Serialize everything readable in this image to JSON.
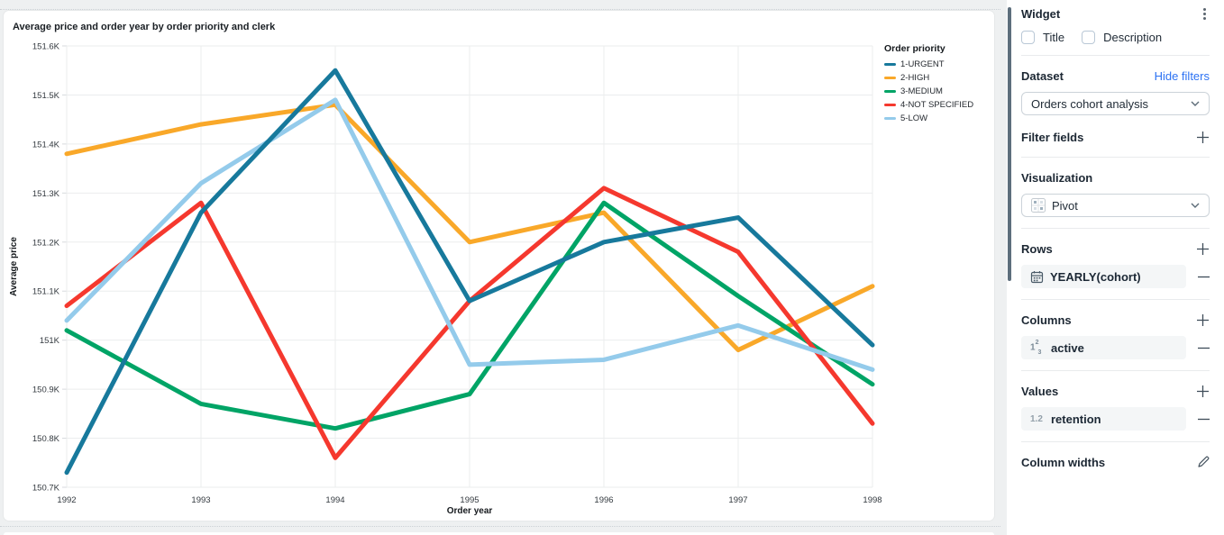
{
  "chart_data": {
    "type": "line",
    "title": "Average price and order year by order priority and clerk",
    "xlabel": "Order year",
    "ylabel": "Average price",
    "categories": [
      "1992",
      "1993",
      "1994",
      "1995",
      "1996",
      "1997",
      "1998"
    ],
    "unit": "K",
    "ylim": [
      150.7,
      151.6
    ],
    "ytick_step": 0.1,
    "ytick_labels": [
      "151.6K",
      "151.5K",
      "151.4K",
      "151.3K",
      "151.2K",
      "151.1K",
      "151K",
      "150.9K",
      "150.8K",
      "150.7K"
    ],
    "grid": true,
    "legend": {
      "title": "Order priority",
      "position": "right"
    },
    "series": [
      {
        "name": "1-URGENT",
        "color": "#17799c",
        "values": [
          150.73,
          151.26,
          151.55,
          151.08,
          151.2,
          151.25,
          150.99
        ]
      },
      {
        "name": "2-HIGH",
        "color": "#f9a829",
        "values": [
          151.38,
          151.44,
          151.48,
          151.2,
          151.26,
          150.98,
          151.11
        ]
      },
      {
        "name": "3-MEDIUM",
        "color": "#00a466",
        "values": [
          151.02,
          150.87,
          150.82,
          150.89,
          151.28,
          151.09,
          150.91
        ]
      },
      {
        "name": "4-NOT SPECIFIED",
        "color": "#f5382e",
        "values": [
          151.07,
          151.28,
          150.76,
          151.08,
          151.31,
          151.18,
          150.83
        ]
      },
      {
        "name": "5-LOW",
        "color": "#94cbeb",
        "values": [
          151.04,
          151.32,
          151.49,
          150.95,
          150.96,
          151.03,
          150.94
        ]
      }
    ],
    "draw_order": [
      1,
      2,
      3,
      4,
      0
    ]
  },
  "sidebar": {
    "title": "Widget",
    "checkboxes": [
      {
        "label": "Title",
        "checked": false
      },
      {
        "label": "Description",
        "checked": false
      }
    ],
    "dataset": {
      "label": "Dataset",
      "link": "Hide filters",
      "selected": "Orders cohort analysis"
    },
    "filter_fields": {
      "label": "Filter fields"
    },
    "visualization": {
      "label": "Visualization",
      "selected": "Pivot"
    },
    "rows": {
      "label": "Rows",
      "items": [
        {
          "icon": "calendar-icon",
          "label": "YEARLY(cohort)"
        }
      ]
    },
    "columns": {
      "label": "Columns",
      "items": [
        {
          "icon": "numeric-123-icon",
          "label": "active"
        }
      ]
    },
    "values": {
      "label": "Values",
      "items": [
        {
          "icon": "decimal-12-icon",
          "label": "retention"
        }
      ]
    },
    "column_widths": {
      "label": "Column widths"
    },
    "icons": {
      "numeric": {
        "main": "1",
        "sup": "2",
        "sub": "3"
      },
      "decimal": "1.2"
    }
  },
  "colors": {
    "accent_blue": "#2c72f3",
    "scrollbar": "#5d6e7c",
    "grid": "#ebedee"
  }
}
